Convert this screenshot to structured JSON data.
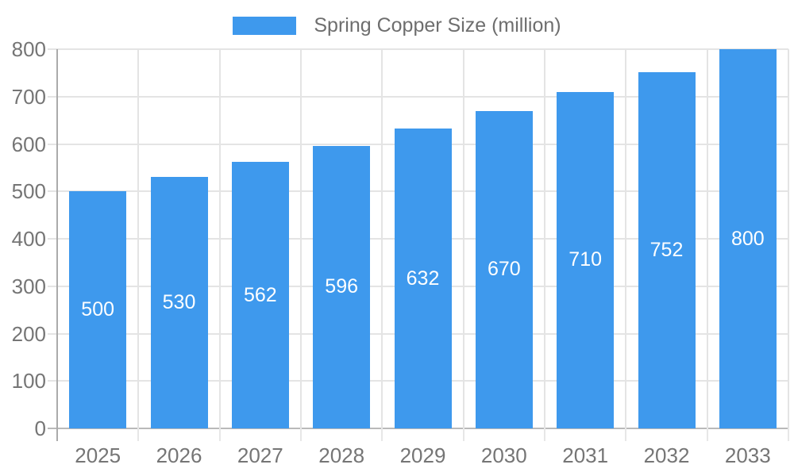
{
  "chart_data": {
    "type": "bar",
    "title": "",
    "legend_position": "top-center",
    "categories": [
      "2025",
      "2026",
      "2027",
      "2028",
      "2029",
      "2030",
      "2031",
      "2032",
      "2033"
    ],
    "series": [
      {
        "name": "Spring Copper Size (million)",
        "values": [
          500,
          530,
          562,
          596,
          632,
          670,
          710,
          752,
          800
        ]
      }
    ],
    "xlabel": "",
    "ylabel": "",
    "ylim": [
      0,
      800
    ],
    "yticks": [
      0,
      100,
      200,
      300,
      400,
      500,
      600,
      700,
      800
    ],
    "grid": true,
    "value_labels_shown": true
  },
  "colors": {
    "bar": "#3E99ED",
    "grid_line": "#E4E4E4",
    "zero_line": "#B9B9B9",
    "axis_line": "#ABABAB",
    "tick_label": "#757575",
    "legend_text": "#6E6E6E",
    "value_label": "#FFFFFF",
    "background": "#FFFFFF"
  }
}
